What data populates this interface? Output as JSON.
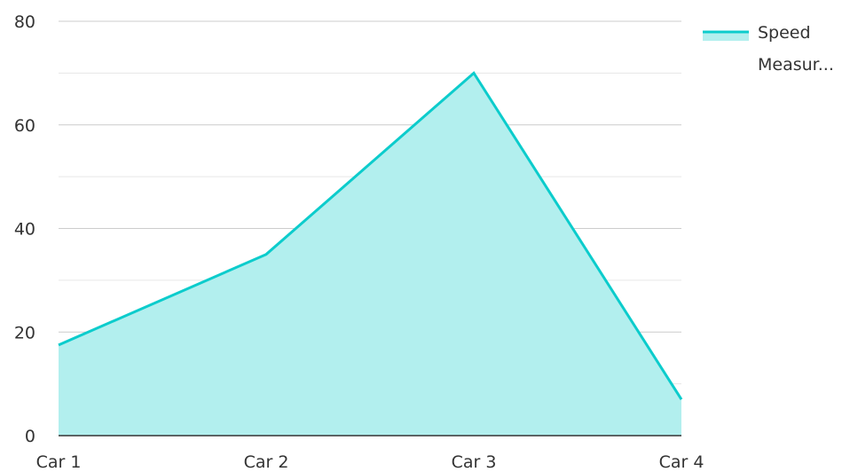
{
  "chart_data": {
    "type": "area",
    "categories": [
      "Car 1",
      "Car 2",
      "Car 3",
      "Car 4"
    ],
    "series": [
      {
        "name": "Speed Measur...",
        "values": [
          17.5,
          35,
          70,
          7
        ],
        "line_color": "#0ccccc",
        "fill_color": "#b2efee"
      }
    ],
    "ylim": [
      0,
      80
    ],
    "y_ticks": [
      0,
      20,
      40,
      60,
      80
    ],
    "grid": true,
    "legend_position": "top-right",
    "legend": {
      "line1": "Speed",
      "line2": "Measur..."
    },
    "colors": {
      "major_grid": "#cccccc",
      "minor_grid": "#e6e6e6",
      "axis": "#333333",
      "text": "#333333"
    }
  }
}
